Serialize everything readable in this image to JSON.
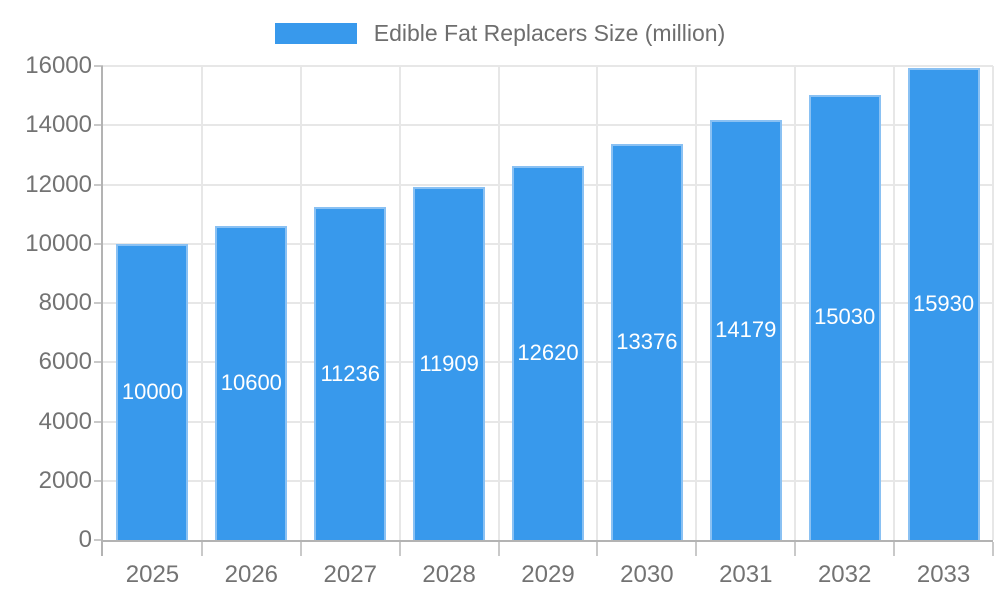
{
  "chart_data": {
    "type": "bar",
    "title": "Edible Fat Replacers Size (million)",
    "categories": [
      "2025",
      "2026",
      "2027",
      "2028",
      "2029",
      "2030",
      "2031",
      "2032",
      "2033"
    ],
    "values": [
      10000,
      10600,
      11236,
      11909,
      12620,
      13376,
      14179,
      15030,
      15930
    ],
    "series_name": "Edible Fat Replacers Size (million)",
    "xlabel": "",
    "ylabel": "",
    "ylim": [
      0,
      16000
    ],
    "ytick_step": 2000,
    "ytick_labels": [
      "0",
      "2000",
      "4000",
      "6000",
      "8000",
      "10000",
      "12000",
      "14000",
      "16000"
    ],
    "grid": true,
    "legend_position": "top",
    "value_labels_inside_bars": true
  },
  "style": {
    "bar_color": "#3899EC",
    "bar_border_color": "#8AC1F3",
    "grid_color": "#E7E7E7",
    "axis_color": "#B3B3B3",
    "tick_color": "#C9C9C9",
    "tick_label_color": "#737373",
    "legend_text_color": "#6E6E6E",
    "value_label_color": "#FFFFFF",
    "background_color": "#FFFFFF"
  }
}
